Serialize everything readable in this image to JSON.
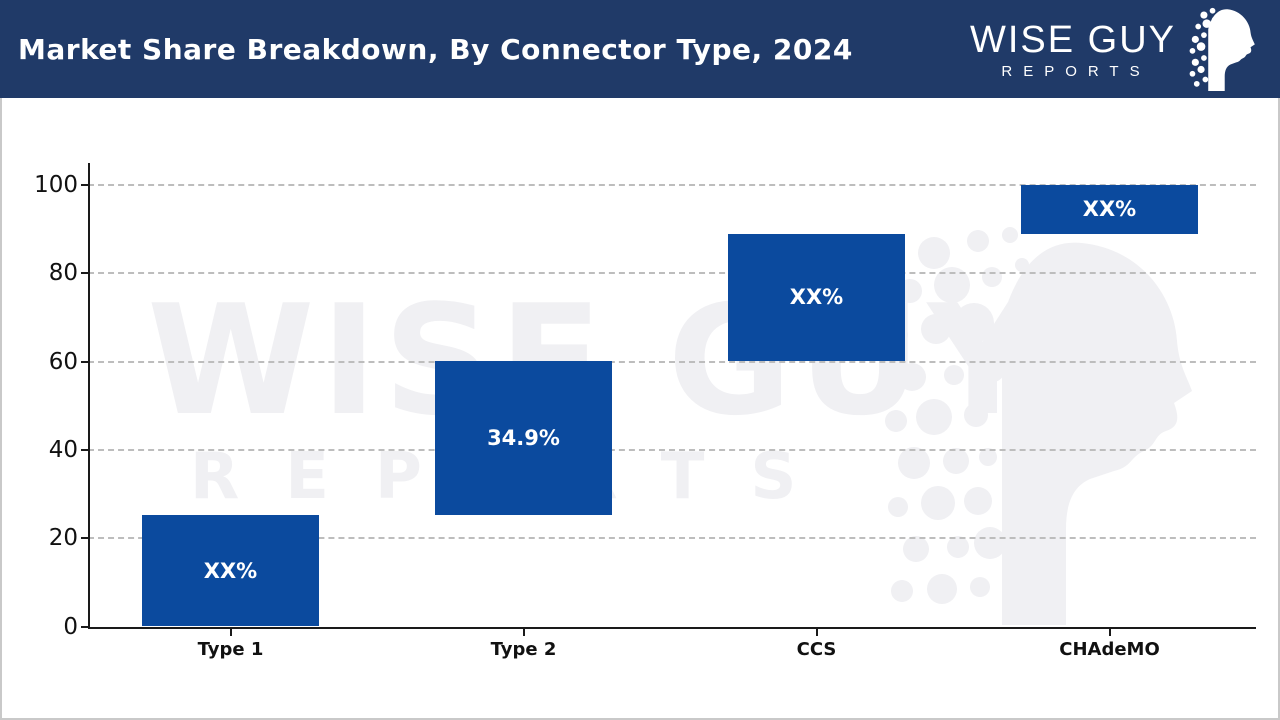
{
  "header": {
    "title": "Market Share Breakdown, By Connector Type, 2024",
    "logo": {
      "line1": "WISE GUY",
      "line2": "REPORTS"
    }
  },
  "watermark": {
    "line1": "WISE GUY",
    "line2": "REPORTS"
  },
  "colors": {
    "header_bg": "#203A68",
    "bar": "#0B4A9E",
    "grid": "#BDBDBD",
    "axis": "#1A1A1A",
    "watermark": "#F0F0F3",
    "bar_label_text": "#FFFFFF",
    "page_border": "#C9C9C9"
  },
  "chart_data": {
    "type": "bar",
    "subtype": "waterfall",
    "title": "Market Share Breakdown, By Connector Type, 2024",
    "xlabel": "",
    "ylabel": "",
    "ylim": [
      0,
      100
    ],
    "yticks": [
      0,
      20,
      40,
      60,
      80,
      100
    ],
    "grid": "horizontal-dashed",
    "legend": "none",
    "categories": [
      "Type 1",
      "Type 2",
      "CCS",
      "CHAdeMO"
    ],
    "segments": [
      {
        "category": "Type 1",
        "start": 0,
        "end": 25.3,
        "value_pct": 25.3,
        "label": "XX%"
      },
      {
        "category": "Type 2",
        "start": 25.3,
        "end": 60.2,
        "value_pct": 34.9,
        "label": "34.9%"
      },
      {
        "category": "CCS",
        "start": 60.2,
        "end": 89.0,
        "value_pct": 28.8,
        "label": "XX%"
      },
      {
        "category": "CHAdeMO",
        "start": 89.0,
        "end": 100.0,
        "value_pct": 11.0,
        "label": "XX%"
      }
    ]
  }
}
